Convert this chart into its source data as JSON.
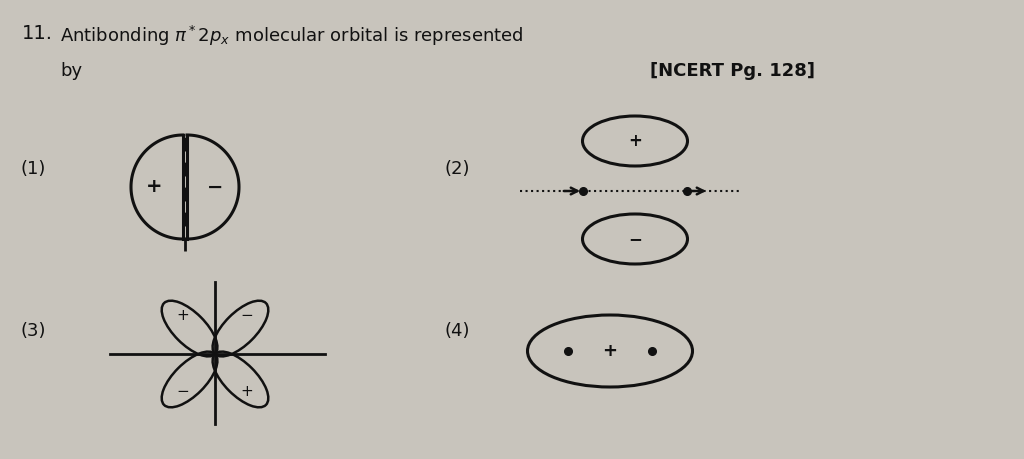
{
  "bg_color": "#c8c4bc",
  "text_color": "#111111",
  "line_color": "#111111",
  "figsize": [
    10.24,
    4.59
  ],
  "dpi": 100,
  "title_num": "11.",
  "title_main": "Antibonding $\\pi^*2p_x$ molecular orbital is represented",
  "title_by": "by",
  "ref": "[NCERT Pg. 128]",
  "opt1": "(1)",
  "opt2": "(2)",
  "opt3": "(3)",
  "opt4": "(4)"
}
